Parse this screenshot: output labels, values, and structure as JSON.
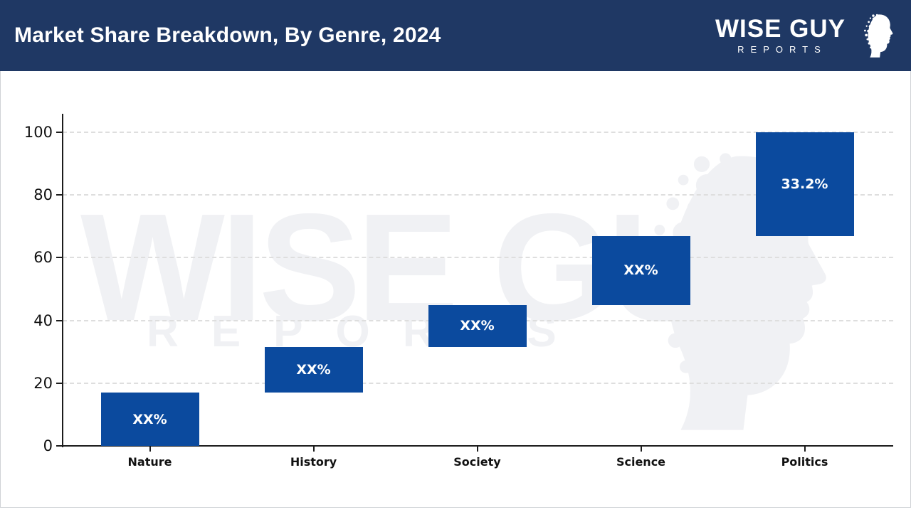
{
  "header": {
    "title": "Market Share Breakdown, By Genre, 2024",
    "background_color": "#1f3864",
    "logo": {
      "name": "WISE GUY",
      "sub": "REPORTS"
    }
  },
  "watermark": {
    "name": "WISE GUY",
    "sub": "REPORTS"
  },
  "chart_data": {
    "type": "bar",
    "subtype": "waterfall",
    "title": "Market Share Breakdown, By Genre, 2024",
    "categories": [
      "Nature",
      "History",
      "Society",
      "Science",
      "Politics"
    ],
    "segments": [
      {
        "category": "Nature",
        "start": 0,
        "end": 17,
        "value": 17,
        "label": "XX%"
      },
      {
        "category": "History",
        "start": 17,
        "end": 31.5,
        "value": 14.5,
        "label": "XX%"
      },
      {
        "category": "Society",
        "start": 31.5,
        "end": 45,
        "value": 13.5,
        "label": "XX%"
      },
      {
        "category": "Science",
        "start": 45,
        "end": 66.8,
        "value": 21.8,
        "label": "XX%"
      },
      {
        "category": "Politics",
        "start": 66.8,
        "end": 100,
        "value": 33.2,
        "label": "33.2%"
      }
    ],
    "xlabel": "",
    "ylabel": "",
    "ylim": [
      0,
      100
    ],
    "yticks": [
      0,
      20,
      40,
      60,
      80,
      100
    ],
    "grid": "horizontal-dashed",
    "legend": "none",
    "bar_color": "#0b4a9e",
    "bar_label_color": "#ffffff"
  }
}
